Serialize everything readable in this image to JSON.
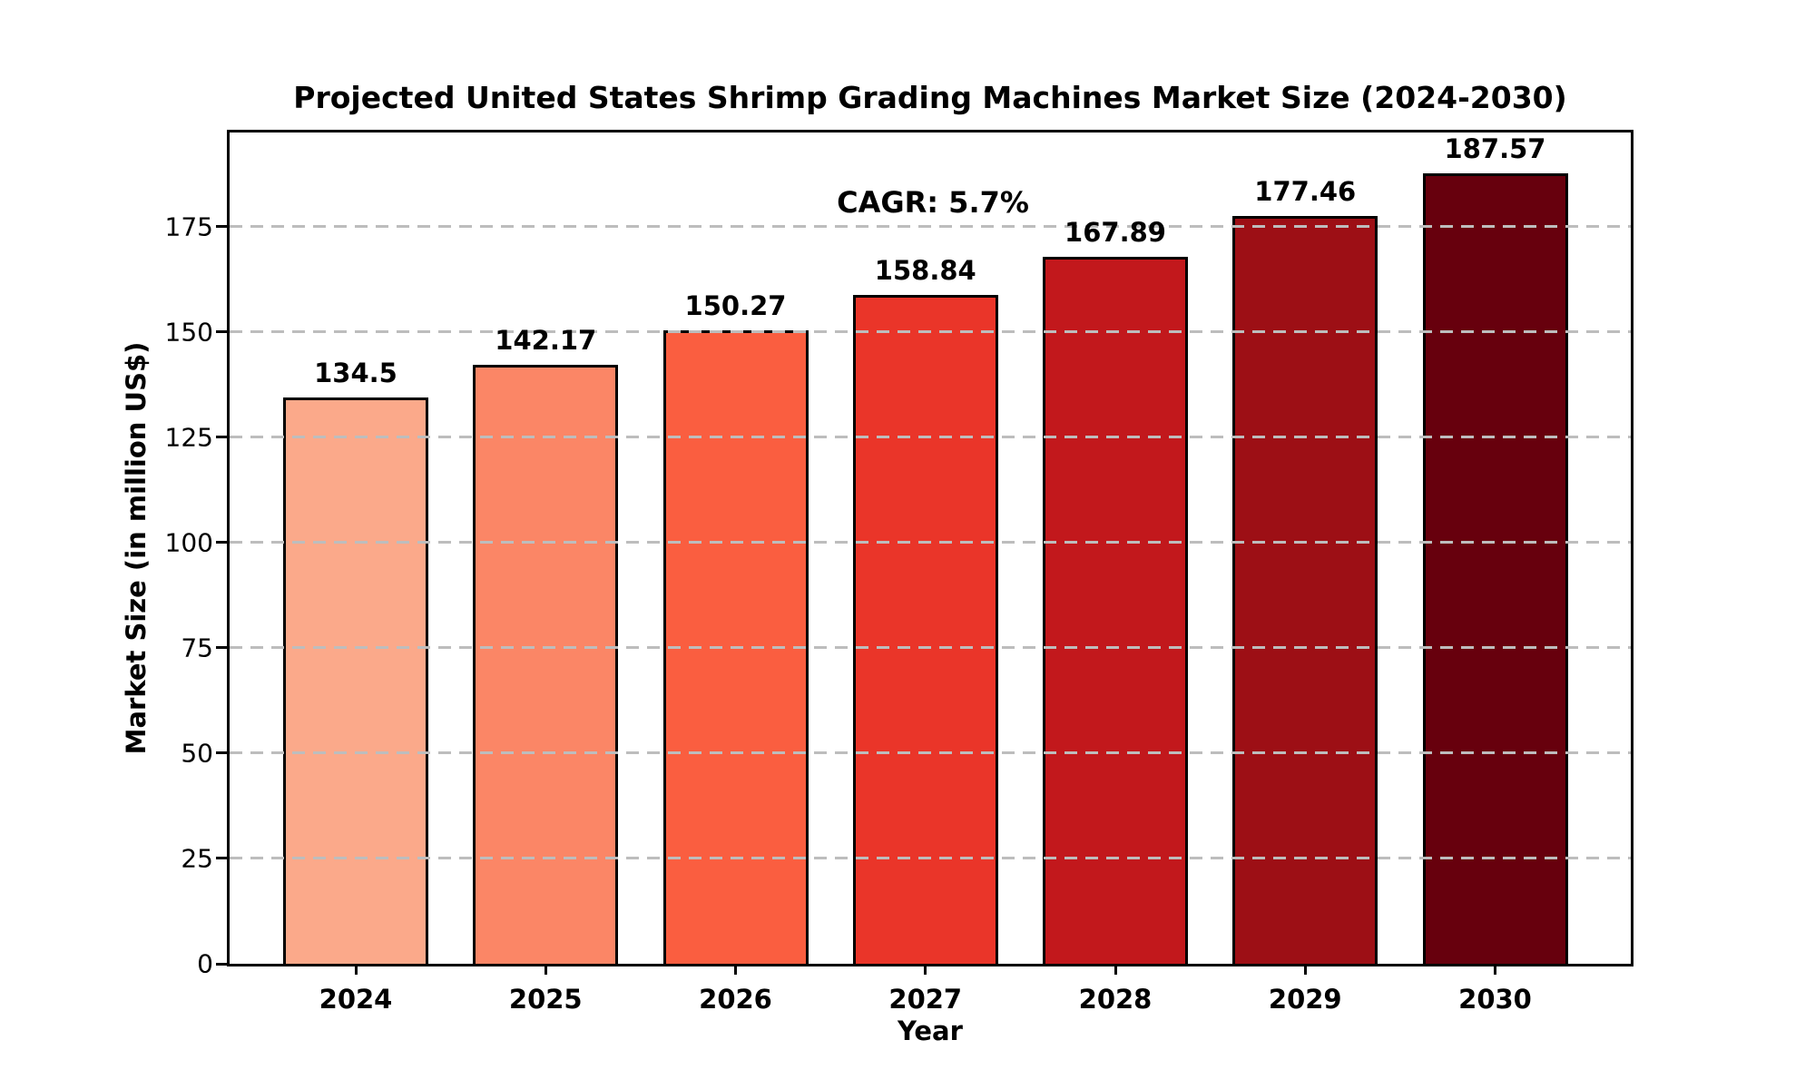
{
  "chart_data": {
    "type": "bar",
    "title": "Projected United States Shrimp Grading Machines Market Size (2024-2030)",
    "annotation": "CAGR: 5.7%",
    "xlabel": "Year",
    "ylabel": "Market Size (in million US$)",
    "categories": [
      "2024",
      "2025",
      "2026",
      "2027",
      "2028",
      "2029",
      "2030"
    ],
    "values": [
      134.5,
      142.17,
      150.27,
      158.84,
      167.89,
      177.46,
      187.57
    ],
    "value_labels": [
      "134.5",
      "142.17",
      "150.27",
      "158.84",
      "167.89",
      "177.46",
      "187.57"
    ],
    "bar_colors": [
      "#FBA98A",
      "#FB8666",
      "#FA5E40",
      "#EA3529",
      "#C2181C",
      "#9D0F15",
      "#67000D"
    ],
    "bar_edge_color": "#000000",
    "yticks": [
      0,
      25,
      50,
      75,
      100,
      125,
      150,
      175
    ],
    "ylim": [
      0,
      197.3
    ],
    "grid": "horizontal-dashed",
    "gridline_color": "#bdbdbd",
    "legend": "none",
    "background_color": "#ffffff"
  }
}
